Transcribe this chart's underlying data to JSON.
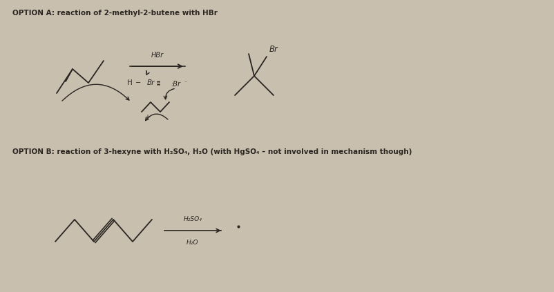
{
  "bg_color": "#c8bfaf",
  "paper_color": "#d4c9b8",
  "ink_color": "#2a2520",
  "fig_width": 8.03,
  "fig_height": 4.23,
  "dpi": 100,
  "title_a": "OPTION A: reaction of 2-methyl-2-butene with HBr",
  "title_b": "OPTION B: reaction of 3-hexyne with H₂SO₄, H₂O (with HgSO₄ – not involved in mechanism though)",
  "title_fontsize": 7.5,
  "label_fontsize": 7.0
}
